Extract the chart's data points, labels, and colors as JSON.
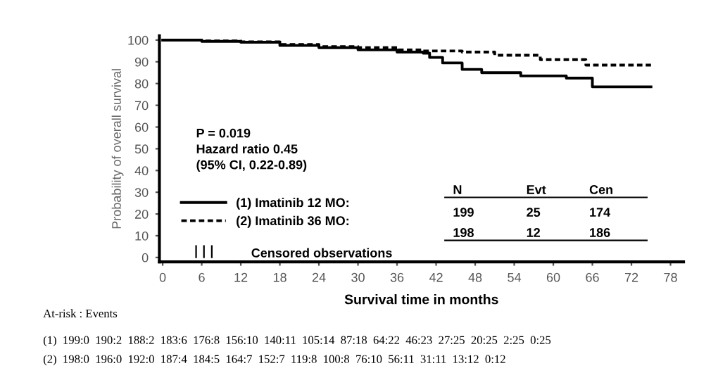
{
  "chart_data": {
    "type": "step",
    "xlabel": "Survival time in months",
    "ylabel": "Probability of overall survival",
    "xlim": [
      -0.5,
      80
    ],
    "xticks": [
      0,
      6,
      12,
      18,
      24,
      30,
      36,
      42,
      48,
      54,
      60,
      66,
      72,
      78
    ],
    "ylim": [
      -2,
      102
    ],
    "yticks": [
      0,
      10,
      20,
      30,
      40,
      50,
      60,
      70,
      80,
      90,
      100
    ],
    "grid": false,
    "legend": "bottom left",
    "marker": "none",
    "series": [
      {
        "name": "(1) Imatinib 12 MO:",
        "color": "#000000",
        "line_style": "solid",
        "x": [
          0,
          6,
          12,
          18,
          24,
          30,
          36,
          40,
          41,
          43,
          46,
          49,
          55,
          62,
          66,
          75
        ],
        "values": [
          100,
          99.4,
          99,
          97.5,
          96.5,
          95.5,
          94.5,
          94,
          92,
          89.5,
          86.5,
          85,
          83.5,
          82.5,
          78.5,
          78.5
        ]
      },
      {
        "name": "(2) Imatinib 36 MO:",
        "color": "#000000",
        "line_style": "dashed",
        "x": [
          0,
          6,
          12,
          18,
          24,
          30,
          36,
          40,
          46,
          51,
          58,
          65,
          75
        ],
        "values": [
          100,
          99.6,
          99.2,
          98,
          97,
          96.5,
          95.5,
          95,
          94.5,
          93,
          91,
          88.5,
          88.5
        ]
      }
    ],
    "annotations": [
      "P = 0.019",
      "Hazard ratio 0.45",
      "(95% CI, 0.22-0.89)",
      "N",
      "Evt",
      "Cen",
      "199",
      "25",
      "174",
      "198",
      "12",
      "186",
      "Censored observations",
      "At-risk : Events",
      "(1)  199:0  190:2  188:2  183:6  176:8  156:10  140:11  105:14  87:18  64:22  46:23  27:25  20:25  2:25  0:25",
      "(2)  198:0  196:0  192:0  187:4  184:5  164:7  152:7  119:8  100:8  76:10  56:11  31:11  13:12  0:12"
    ]
  }
}
